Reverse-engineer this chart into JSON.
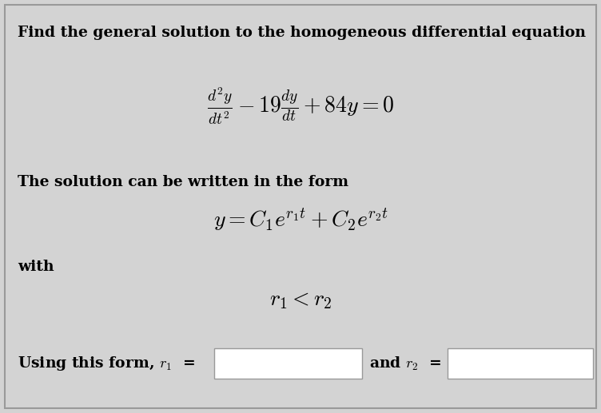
{
  "bg_color": "#d3d3d3",
  "border_color": "#999999",
  "text_color": "#000000",
  "title_text": "Find the general solution to the homogeneous differential equation",
  "eq1_latex": "$\\frac{d^2y}{dt^2} - 19\\frac{dy}{dt} + 84y = 0$",
  "sol_text": "The solution can be written in the form",
  "eq2_latex": "$y = C_1e^{r_1 t} + C_2e^{r_2 t}$",
  "with_text": "with",
  "eq3_latex": "$r_1 < r_2$",
  "bottom_text_left": "Using this form, $r_1$  =",
  "bottom_text_mid": "and $r_2$  =",
  "input_box_color": "#ffffff",
  "font_size_text": 13.5,
  "font_size_eq": 20,
  "font_size_small_eq": 17
}
